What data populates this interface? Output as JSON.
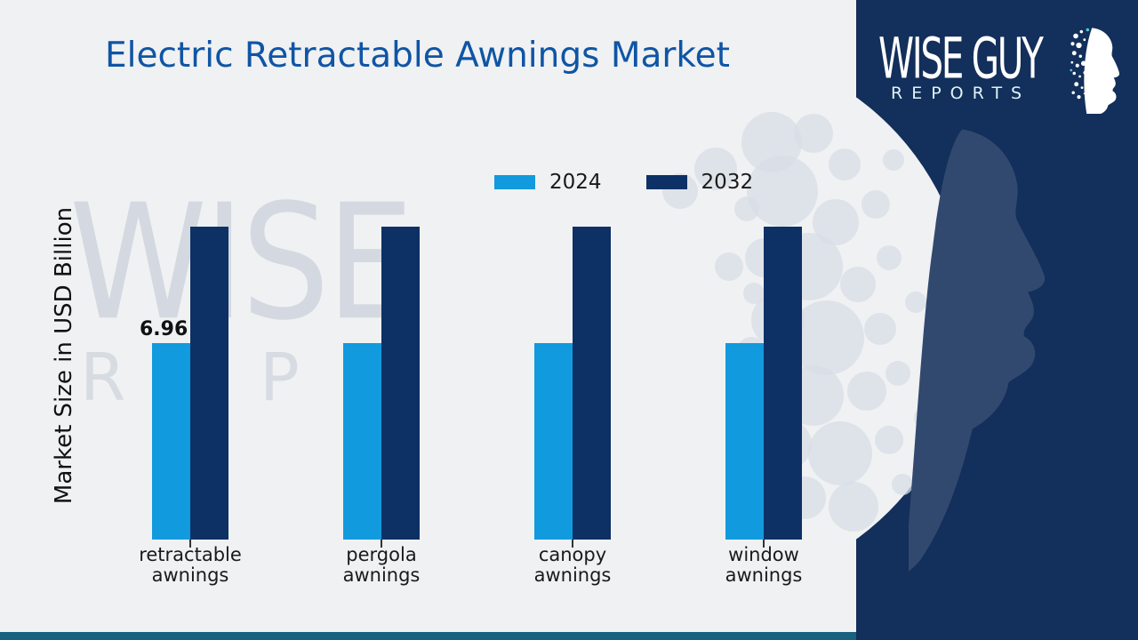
{
  "header": {
    "title": "Electric Retractable Awnings Market",
    "title_color": "#0f55a5"
  },
  "logo": {
    "line1": "WISE GUY",
    "line2": "REPORTS",
    "head_icon": "head-profile-dots",
    "accent_color": "#56c7d7"
  },
  "watermark": {
    "line1": "WISE GUY",
    "line2": "REPORTS"
  },
  "chart_data": {
    "type": "bar",
    "title": "Electric Retractable Awnings Market",
    "categories": [
      "retractable awnings",
      "pergola awnings",
      "canopy awnings",
      "window awnings"
    ],
    "series": [
      {
        "name": "2024",
        "color": "#119add",
        "values": [
          6.96,
          6.96,
          6.96,
          6.96
        ]
      },
      {
        "name": "2032",
        "color": "#0d3165",
        "values": [
          11.1,
          11.1,
          11.1,
          11.1
        ]
      }
    ],
    "xlabel": "",
    "ylabel": "Market Size in USD Billion",
    "ylim": [
      0,
      13
    ],
    "grid": false,
    "legend_position": "top-center",
    "annotations": [
      {
        "text": "6.96",
        "series": "2024",
        "category": "retractable awnings"
      }
    ]
  },
  "colors": {
    "background": "#f0f1f2",
    "panel_navy": "#132f5b",
    "teal_bar": "#1a617f",
    "watermark_face": "#32496f",
    "watermark_dots": "#d8dde6"
  }
}
